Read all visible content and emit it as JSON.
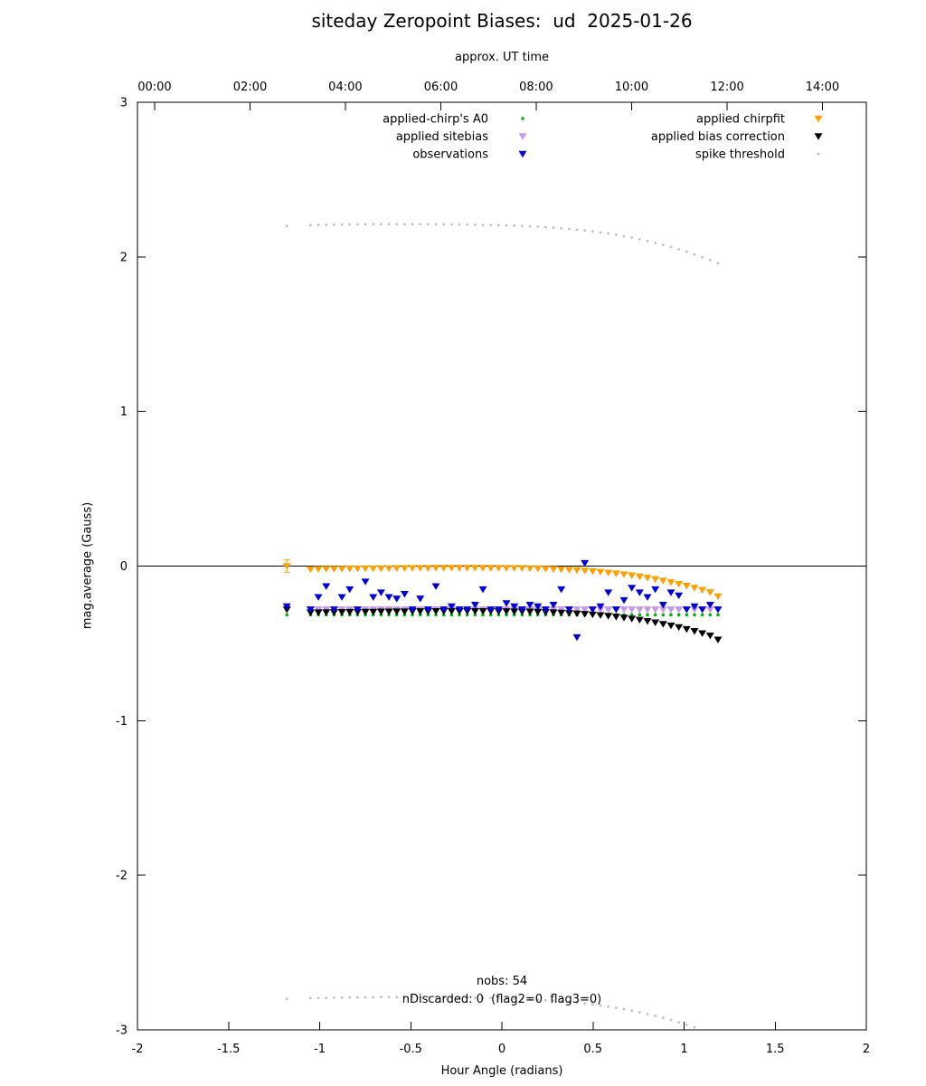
{
  "chart_data": {
    "type": "scatter",
    "title": "siteday Zeropoint Biases:  ud  2025-01-26",
    "xlabel": "Hour Angle (radians)",
    "ylabel": "mag.average (Gauss)",
    "xlim": [
      -2,
      2
    ],
    "ylim": [
      -3,
      3
    ],
    "grid": false,
    "background_color": "#ffffff",
    "x_ticks": {
      "values": [
        -2,
        -1.5,
        -1,
        -0.5,
        0,
        0.5,
        1,
        1.5,
        2
      ],
      "labels": [
        "-2",
        "-1.5",
        "-1",
        "-0.5",
        "0",
        "0.5",
        "1",
        "1.5",
        "2"
      ]
    },
    "y_ticks": {
      "values": [
        -3,
        -2,
        -1,
        0,
        1,
        2,
        3
      ],
      "labels": [
        "-3",
        "-2",
        "-1",
        "0",
        "1",
        "2",
        "3"
      ]
    },
    "top_axis": {
      "label": "approx. UT time",
      "tick_values": [
        -1.906,
        -1.382,
        -0.859,
        -0.335,
        0.188,
        0.712,
        1.236,
        1.759
      ],
      "tick_labels": [
        "00:00",
        "02:00",
        "04:00",
        "06:00",
        "08:00",
        "10:00",
        "12:00",
        "14:00"
      ]
    },
    "zero_line_y": 0,
    "annotations": [
      "nobs: 54",
      "nDiscarded: 0  (flag2=0  flag3=0)"
    ],
    "hour_angle": [
      -1.18,
      -1.05,
      -1.007,
      -0.964,
      -0.921,
      -0.878,
      -0.835,
      -0.792,
      -0.749,
      -0.706,
      -0.663,
      -0.62,
      -0.577,
      -0.534,
      -0.491,
      -0.448,
      -0.405,
      -0.362,
      -0.319,
      -0.276,
      -0.233,
      -0.19,
      -0.147,
      -0.104,
      -0.061,
      -0.018,
      0.025,
      0.068,
      0.111,
      0.154,
      0.197,
      0.24,
      0.283,
      0.326,
      0.369,
      0.412,
      0.455,
      0.498,
      0.541,
      0.584,
      0.627,
      0.67,
      0.713,
      0.756,
      0.799,
      0.842,
      0.885,
      0.928,
      0.971,
      1.014,
      1.057,
      1.1,
      1.143,
      1.186
    ],
    "series": [
      {
        "id": "applied_chirp_a0",
        "label": "applied-chirp's A0",
        "color": "#00b400",
        "marker": "dot",
        "marker_size": 1.8,
        "y_const": -0.315
      },
      {
        "id": "applied_chirpfit",
        "label": "applied chirpfit",
        "color": "#ffa000",
        "marker": "triangle-down",
        "error_bar": {
          "index": 0,
          "yerr": 0.04
        },
        "y": [
          0.0,
          -0.02,
          -0.019,
          -0.018,
          -0.018,
          -0.017,
          -0.016,
          -0.016,
          -0.015,
          -0.015,
          -0.014,
          -0.014,
          -0.013,
          -0.013,
          -0.012,
          -0.012,
          -0.012,
          -0.011,
          -0.011,
          -0.011,
          -0.011,
          -0.011,
          -0.011,
          -0.011,
          -0.011,
          -0.012,
          -0.012,
          -0.013,
          -0.013,
          -0.014,
          -0.015,
          -0.017,
          -0.019,
          -0.021,
          -0.023,
          -0.026,
          -0.029,
          -0.033,
          -0.037,
          -0.042,
          -0.047,
          -0.053,
          -0.06,
          -0.067,
          -0.075,
          -0.084,
          -0.094,
          -0.104,
          -0.115,
          -0.127,
          -0.14,
          -0.154,
          -0.169,
          -0.195
        ]
      },
      {
        "id": "applied_sitebias",
        "label": "applied sitebias",
        "color": "#c896e6",
        "marker": "triangle-down",
        "y_const": -0.28
      },
      {
        "id": "applied_bias_correction",
        "label": "applied bias correction",
        "color": "#000000",
        "marker": "triangle-down",
        "y": [
          -0.28,
          -0.3,
          -0.299,
          -0.298,
          -0.298,
          -0.297,
          -0.296,
          -0.296,
          -0.295,
          -0.295,
          -0.294,
          -0.294,
          -0.293,
          -0.293,
          -0.292,
          -0.292,
          -0.292,
          -0.291,
          -0.291,
          -0.291,
          -0.291,
          -0.291,
          -0.291,
          -0.291,
          -0.291,
          -0.292,
          -0.292,
          -0.293,
          -0.293,
          -0.294,
          -0.295,
          -0.297,
          -0.299,
          -0.301,
          -0.303,
          -0.306,
          -0.309,
          -0.313,
          -0.317,
          -0.322,
          -0.327,
          -0.333,
          -0.34,
          -0.347,
          -0.355,
          -0.364,
          -0.374,
          -0.384,
          -0.395,
          -0.407,
          -0.42,
          -0.434,
          -0.449,
          -0.475
        ]
      },
      {
        "id": "observations",
        "label": "observations",
        "color": "#0000dd",
        "marker": "triangle-down",
        "y": [
          -0.26,
          -0.28,
          -0.2,
          -0.13,
          -0.28,
          -0.2,
          -0.15,
          -0.28,
          -0.1,
          -0.2,
          -0.17,
          -0.2,
          -0.21,
          -0.18,
          -0.28,
          -0.21,
          -0.28,
          -0.13,
          -0.28,
          -0.26,
          -0.28,
          -0.28,
          -0.25,
          -0.15,
          -0.28,
          -0.28,
          -0.24,
          -0.26,
          -0.28,
          -0.25,
          -0.26,
          -0.28,
          -0.25,
          -0.15,
          -0.28,
          -0.46,
          0.02,
          -0.28,
          -0.26,
          -0.17,
          -0.28,
          -0.22,
          -0.14,
          -0.17,
          -0.2,
          -0.15,
          -0.25,
          -0.17,
          -0.19,
          -0.28,
          -0.26,
          -0.28,
          -0.25,
          -0.28
        ]
      },
      {
        "id": "spike_threshold",
        "label": "spike threshold",
        "color": "#c0c0c0",
        "marker": "dot",
        "marker_size": 1.4,
        "mirror_offset": -5,
        "y": [
          2.2,
          2.205,
          2.206,
          2.207,
          2.208,
          2.209,
          2.21,
          2.21,
          2.211,
          2.211,
          2.212,
          2.212,
          2.212,
          2.212,
          2.212,
          2.212,
          2.212,
          2.211,
          2.211,
          2.21,
          2.21,
          2.209,
          2.208,
          2.207,
          2.206,
          2.205,
          2.203,
          2.202,
          2.2,
          2.198,
          2.195,
          2.192,
          2.189,
          2.185,
          2.181,
          2.176,
          2.171,
          2.165,
          2.158,
          2.151,
          2.143,
          2.134,
          2.125,
          2.114,
          2.103,
          2.091,
          2.078,
          2.064,
          2.049,
          2.033,
          2.016,
          1.998,
          1.979,
          1.959
        ]
      }
    ],
    "draw_order": [
      "spike_threshold",
      "applied_chirp_a0",
      "applied_chirpfit",
      "applied_sitebias",
      "applied_bias_correction",
      "observations"
    ],
    "legend_rows": [
      [
        "applied_chirp_a0",
        "applied_chirpfit"
      ],
      [
        "applied_sitebias",
        "applied_bias_correction"
      ],
      [
        "observations",
        "spike_threshold"
      ]
    ]
  }
}
